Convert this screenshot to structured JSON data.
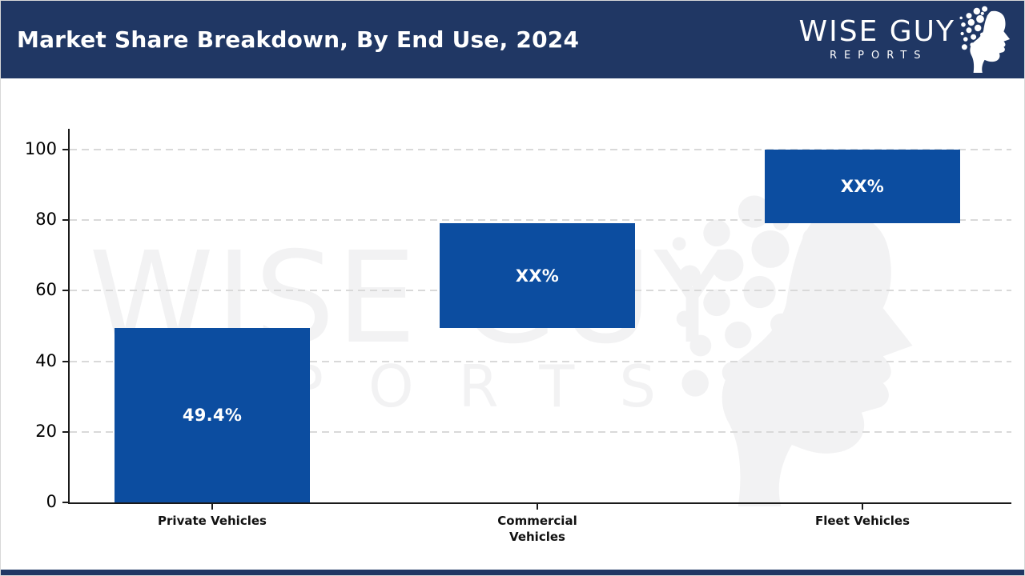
{
  "header": {
    "title": "Market Share Breakdown, By End Use, 2024",
    "logo": {
      "line1": "WISE GUY",
      "line2": "REPORTS"
    },
    "bg_color": "#203764"
  },
  "watermark": {
    "line1": "WISE GUY",
    "line2": "REPORTS",
    "color": "#f2f2f3"
  },
  "colors": {
    "bar": "#0c4da0",
    "gridline": "#d9d9d9",
    "axis": "#1a1a1a",
    "bar_label_text": "#ffffff",
    "header_text": "#ffffff"
  },
  "icons": {
    "logo_face": "dotted-head-profile-icon",
    "watermark_face": "dotted-head-profile-icon"
  },
  "chart_data": {
    "type": "bar",
    "subtype": "waterfall",
    "title": "Market Share Breakdown, By End Use, 2024",
    "xlabel": "",
    "ylabel": "",
    "categories": [
      "Private Vehicles",
      "Commercial Vehicles",
      "Fleet Vehicles"
    ],
    "categories_display": [
      [
        "Private Vehicles"
      ],
      [
        "Commercial",
        "Vehicles"
      ],
      [
        "Fleet Vehicles"
      ]
    ],
    "segments": [
      {
        "category": "Private Vehicles",
        "start": 0,
        "end": 49.4,
        "label": "49.4%"
      },
      {
        "category": "Commercial Vehicles",
        "start": 49.4,
        "end": 79.1,
        "label": "XX%"
      },
      {
        "category": "Fleet Vehicles",
        "start": 79.1,
        "end": 100,
        "label": "XX%"
      }
    ],
    "ylim": [
      0,
      100
    ],
    "yticks": [
      0,
      20,
      40,
      60,
      80,
      100
    ],
    "grid": "horizontal-dashed",
    "legend": "none",
    "bar_color": "#0c4da0"
  }
}
